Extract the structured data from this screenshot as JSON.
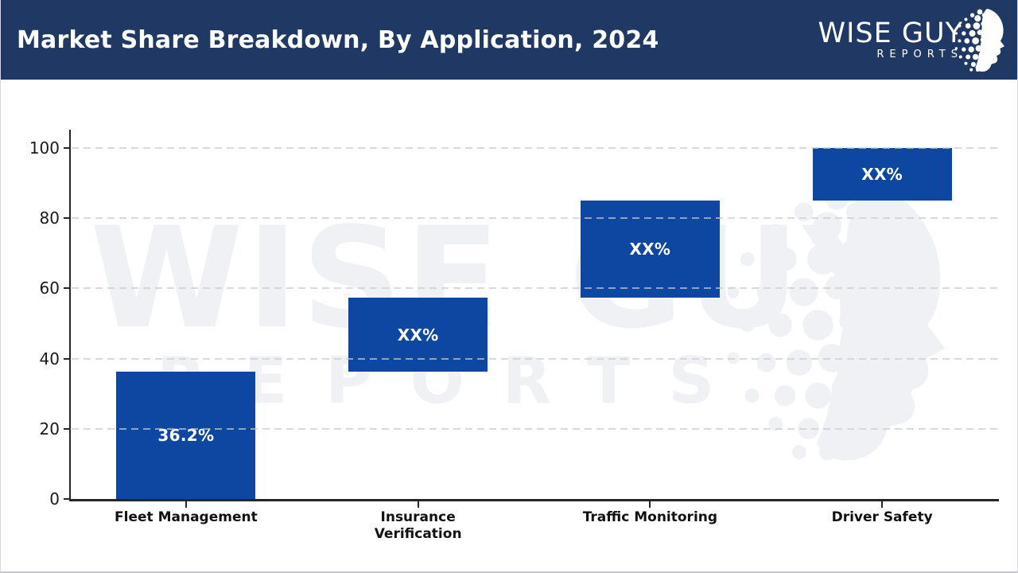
{
  "header": {
    "title": "Market Share Breakdown, By Application, 2024",
    "brand": {
      "name": "WISE GUY",
      "sub": "REPORTS"
    }
  },
  "watermark": {
    "line1": "WISE GUY",
    "line2": "REPORTS"
  },
  "colors": {
    "header_bg": "#1f3864",
    "bar": "#0d47a1",
    "axis": "#262626",
    "value_label": "#ffffff",
    "watermark": "#eff1f4"
  },
  "chart_data": {
    "type": "bar",
    "subtype": "waterfall",
    "title": "Market Share Breakdown, By Application, 2024",
    "categories": [
      "Fleet Management",
      "Insurance Verification",
      "Traffic Monitoring",
      "Driver Safety"
    ],
    "x_tick_labels": [
      "Fleet Management",
      "Insurance\nVerification",
      "Traffic Monitoring",
      "Driver Safety"
    ],
    "segments": [
      {
        "category": "Fleet Management",
        "start": 0,
        "end": 36.2,
        "label": "36.2%"
      },
      {
        "category": "Insurance Verification",
        "start": 36.2,
        "end": 57.4,
        "label": "XX%"
      },
      {
        "category": "Traffic Monitoring",
        "start": 57.4,
        "end": 85.0,
        "label": "XX%"
      },
      {
        "category": "Driver Safety",
        "start": 85.0,
        "end": 100.0,
        "label": "XX%"
      },
      {
        "note": "only first segment value visible; others masked as XX%"
      }
    ],
    "yticks": [
      0,
      20,
      40,
      60,
      80,
      100
    ],
    "y_tick_labels": [
      "0",
      "20",
      "40",
      "60",
      "80",
      "100"
    ],
    "ylim": [
      0,
      105
    ],
    "xlabel": "",
    "ylabel": "",
    "grid": "horizontal-dashed",
    "legend": null
  }
}
